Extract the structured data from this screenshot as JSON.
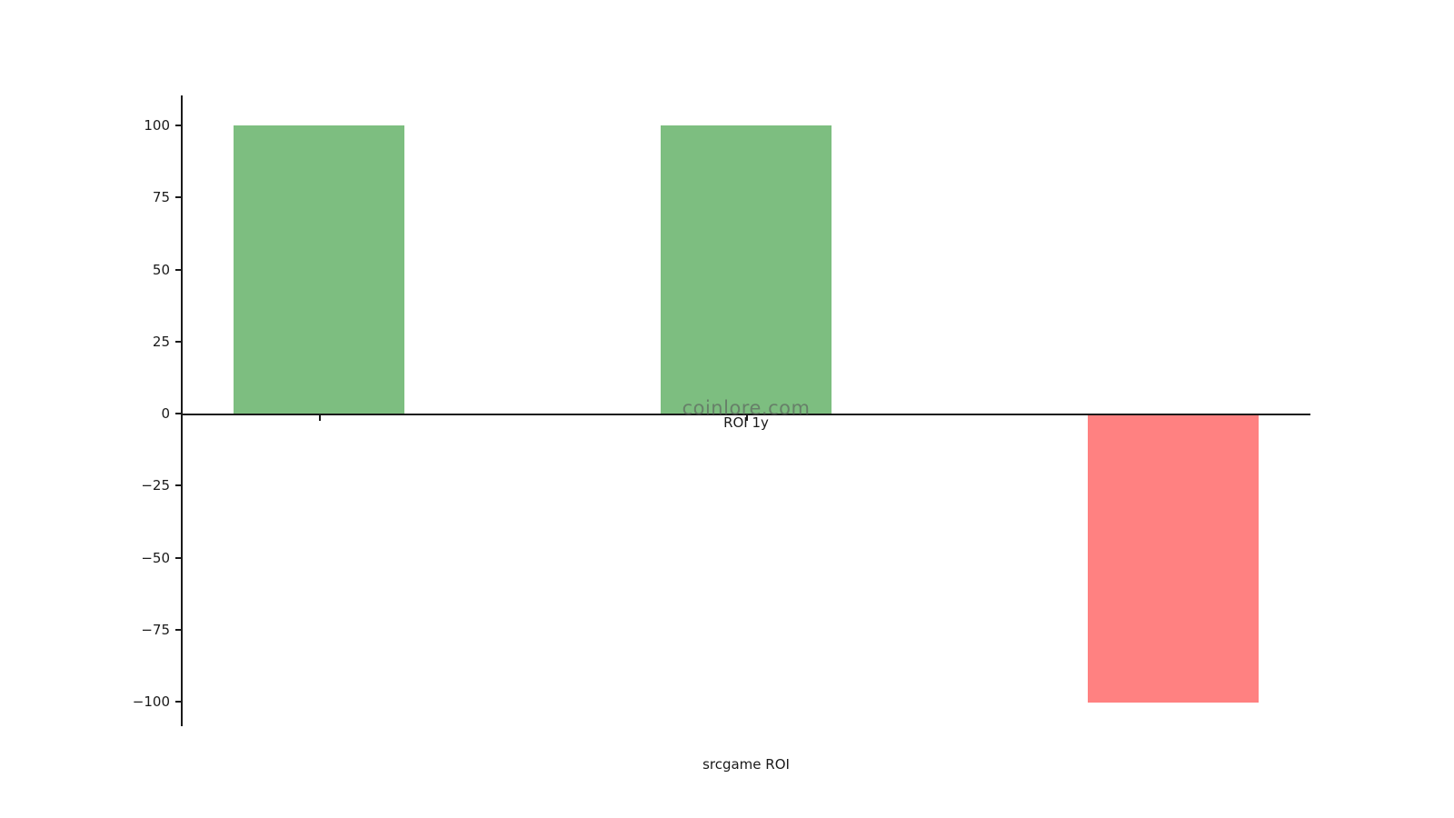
{
  "page": {
    "background": "#ffffff"
  },
  "chart_data": {
    "type": "bar",
    "title": "",
    "xlabel": "srcgame ROI",
    "ylabel": "",
    "watermark": "coinlore.com",
    "categories": [
      "",
      "ROI 1y",
      ""
    ],
    "values": [
      100,
      100,
      -100
    ],
    "bar_colors": [
      "#7dbe80",
      "#7dbe80",
      "#ff8181"
    ],
    "yticks": [
      100,
      75,
      50,
      25,
      0,
      -25,
      -50,
      -75,
      -100
    ],
    "ytick_labels": [
      "100",
      "75",
      "50",
      "25",
      "0",
      "−25",
      "−50",
      "−75",
      "−100"
    ],
    "ylim": [
      -110,
      110
    ],
    "grid": false,
    "legend": false
  },
  "colors": {
    "positive_bar": "#7dbe80",
    "negative_bar": "#ff8181",
    "axis": "#1a1a1a",
    "watermark_gray": "#5a5a5a",
    "text": "#1a1a1a"
  }
}
